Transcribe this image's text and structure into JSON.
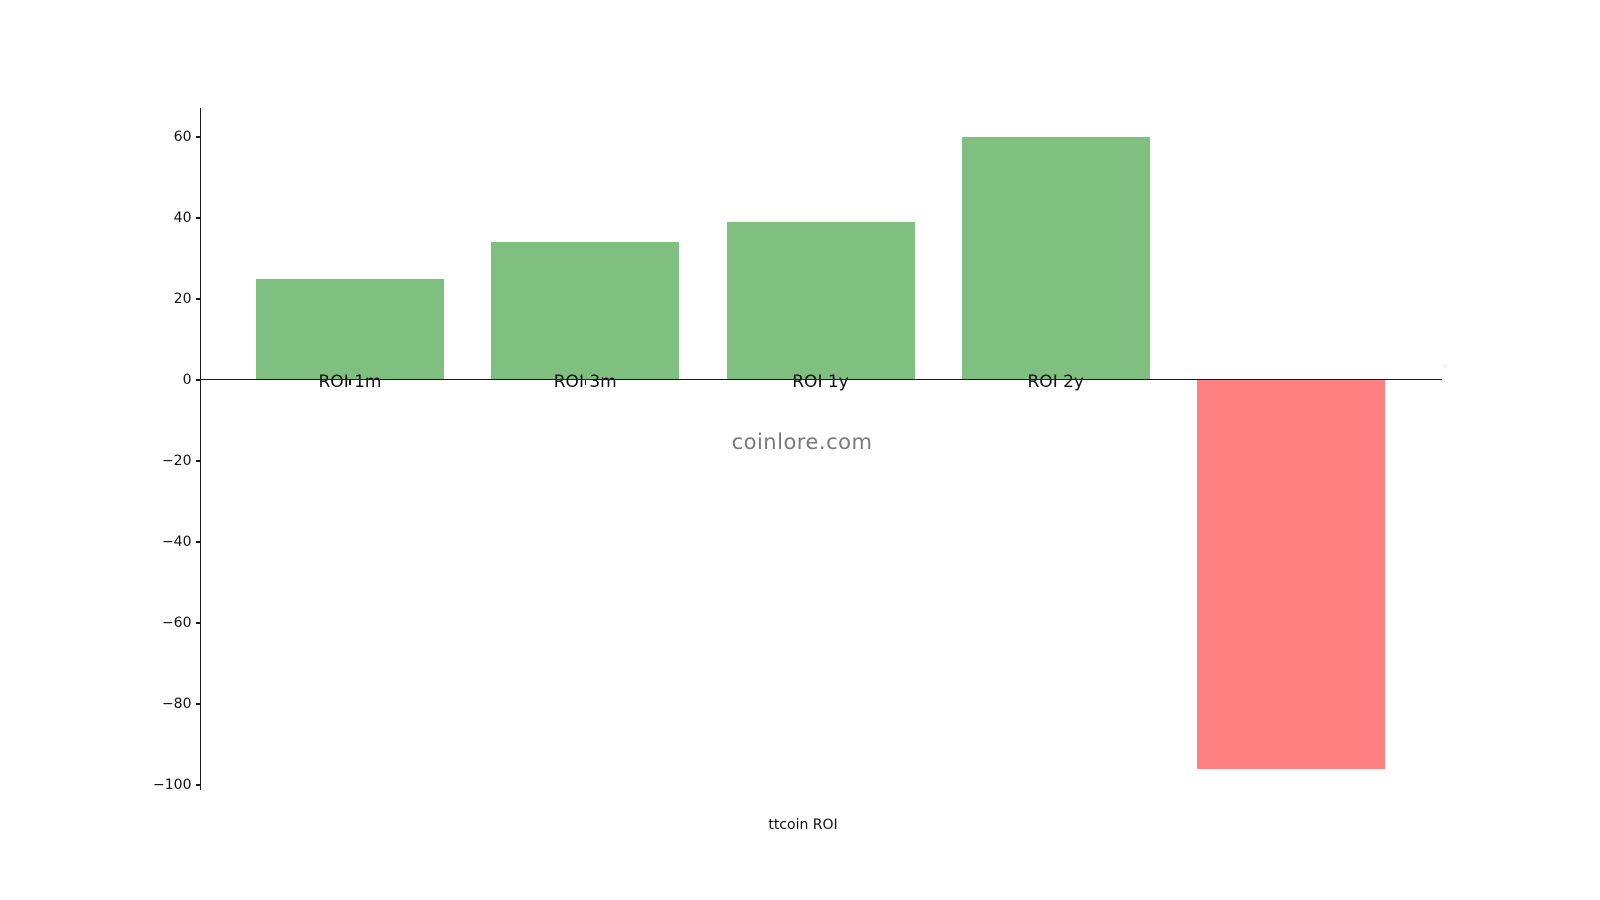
{
  "page": {
    "background": "#ffffff"
  },
  "watermark": {
    "text": "coinlore.com",
    "color": "#7a7a7a"
  },
  "chart_data": {
    "type": "bar",
    "title": "",
    "xlabel": "ttcoin ROI",
    "ylabel": "",
    "categories": [
      "ROI 1m",
      "ROI 3m",
      "ROI 1y",
      "ROI 2y",
      ""
    ],
    "values": [
      25,
      34,
      39,
      60,
      -96
    ],
    "bar_colors": [
      "#7fbf7f",
      "#7fbf7f",
      "#7fbf7f",
      "#7fbf7f",
      "#ff8080"
    ],
    "positive_color": "#7fbf7f",
    "negative_color": "#ff8080",
    "ylim": [
      -101,
      67
    ],
    "yticks": [
      {
        "value": 60,
        "label": "60"
      },
      {
        "value": 40,
        "label": "40"
      },
      {
        "value": 20,
        "label": "20"
      },
      {
        "value": 0,
        "label": "0"
      },
      {
        "value": -20,
        "label": "−20"
      },
      {
        "value": -40,
        "label": "−40"
      },
      {
        "value": -60,
        "label": "−60"
      },
      {
        "value": -80,
        "label": "−80"
      },
      {
        "value": -100,
        "label": "−100"
      }
    ],
    "grid": false,
    "legend": false
  }
}
